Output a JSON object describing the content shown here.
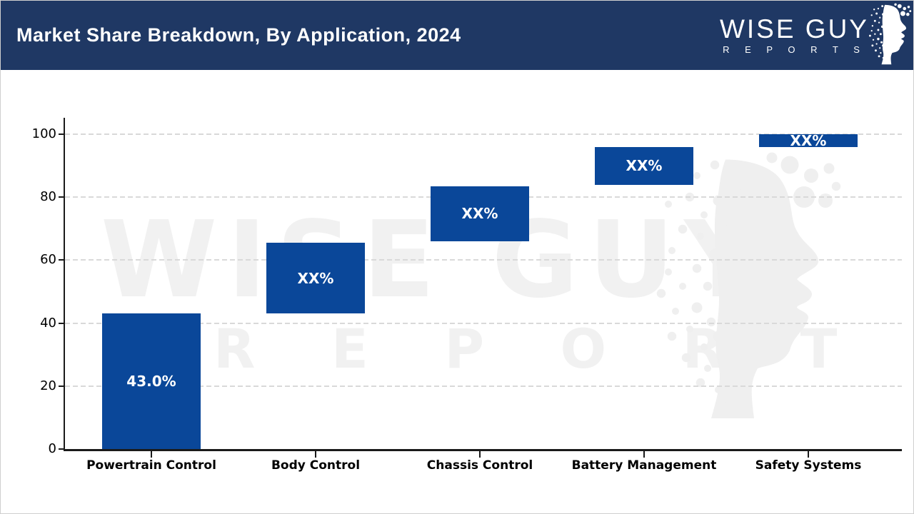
{
  "header": {
    "title": "Market Share Breakdown, By Application, 2024",
    "logo": {
      "line1": "WISE GUY",
      "line2": "R E P O R T S"
    }
  },
  "watermark": {
    "line1": "WISE GUY",
    "line2": "R E P O R T S"
  },
  "colors": {
    "header_bg": "#1f3864",
    "bar": "#0a4799",
    "axis": "#1a1a1a",
    "grid": "#d9d9d9",
    "bar_label_text": "#ffffff",
    "watermark": "#f1f1f1"
  },
  "chart_data": {
    "type": "bar",
    "subtype": "waterfall",
    "title": "Market Share Breakdown, By Application, 2024",
    "categories": [
      "Powertrain Control",
      "Body Control",
      "Chassis Control",
      "Battery Management",
      "Safety Systems"
    ],
    "series": [
      {
        "name": "Market Share",
        "segments": [
          {
            "start": 0,
            "end": 43
          },
          {
            "start": 43,
            "end": 65.5
          },
          {
            "start": 66,
            "end": 83.5
          },
          {
            "start": 84,
            "end": 96
          },
          {
            "start": 96,
            "end": 100
          }
        ]
      }
    ],
    "bar_labels": [
      "43.0%",
      "XX%",
      "XX%",
      "XX%",
      "XX%"
    ],
    "first_bar_value": "43.0%",
    "xlabel": "",
    "ylabel": "",
    "yticks": [
      0,
      20,
      40,
      60,
      80,
      100
    ],
    "ylim": [
      0,
      105
    ],
    "grid": "horizontal dashed",
    "legend": "none",
    "bar_color": "#0a4799"
  }
}
